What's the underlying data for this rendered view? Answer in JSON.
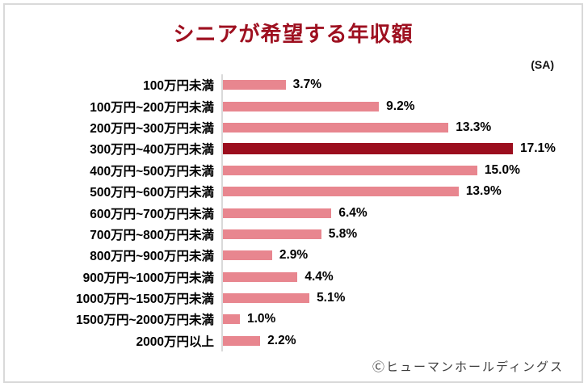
{
  "chart_data": {
    "type": "bar",
    "orientation": "horizontal",
    "title": "シニアが希望する年収額",
    "note": "(SA)",
    "categories": [
      "100万円未満",
      "100万円~200万円未満",
      "200万円~300万円未満",
      "300万円~400万円未満",
      "400万円~500万円未満",
      "500万円~600万円未満",
      "600万円~700万円未満",
      "700万円~800万円未満",
      "800万円~900万円未満",
      "900万円~1000万円未満",
      "1000万円~1500万円未満",
      "1500万円~2000万円未満",
      "2000万円以上"
    ],
    "values": [
      3.7,
      9.2,
      13.3,
      17.1,
      15.0,
      13.9,
      6.4,
      5.8,
      2.9,
      4.4,
      5.1,
      1.0,
      2.2
    ],
    "value_suffix": "%",
    "highlight_index": 3,
    "xlim": [
      0,
      18
    ],
    "grid": false,
    "legend": false,
    "colors": {
      "bar": "#e8868f",
      "highlight_bar": "#9b0e1e",
      "title": "#9e1020",
      "axis_line": "#d9d9d9",
      "value_text": "#000000"
    }
  },
  "watermark": "Ⓒヒューマンホールディングス"
}
